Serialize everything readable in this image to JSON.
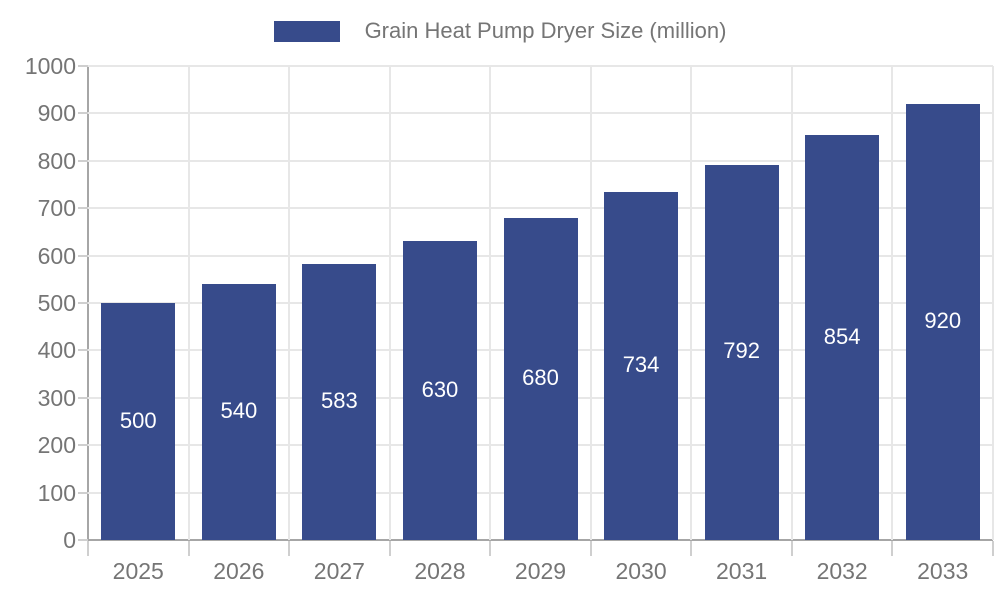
{
  "chart_data": {
    "type": "bar",
    "title": "Grain Heat Pump Dryer Size (million)",
    "categories": [
      "2025",
      "2026",
      "2027",
      "2028",
      "2029",
      "2030",
      "2031",
      "2032",
      "2033"
    ],
    "values": [
      500,
      540,
      583,
      630,
      680,
      734,
      792,
      854,
      920
    ],
    "series": [
      {
        "name": "Grain Heat Pump Dryer Size (million)",
        "values": [
          500,
          540,
          583,
          630,
          680,
          734,
          792,
          854,
          920
        ]
      }
    ],
    "xlabel": "",
    "ylabel": "",
    "ylim": [
      0,
      1000
    ],
    "ytick_step": 100,
    "yticks": [
      0,
      100,
      200,
      300,
      400,
      500,
      600,
      700,
      800,
      900,
      1000
    ],
    "grid": true,
    "legend_position": "top",
    "value_labels": "inside-center",
    "colors": {
      "bar": "#374B8B",
      "value_label": "#FFFFFF",
      "axis_text": "#757575",
      "grid_line": "#E7E7E7",
      "axis_line": "#A6A6A6",
      "tick_mark": "#CFCFCF"
    }
  }
}
